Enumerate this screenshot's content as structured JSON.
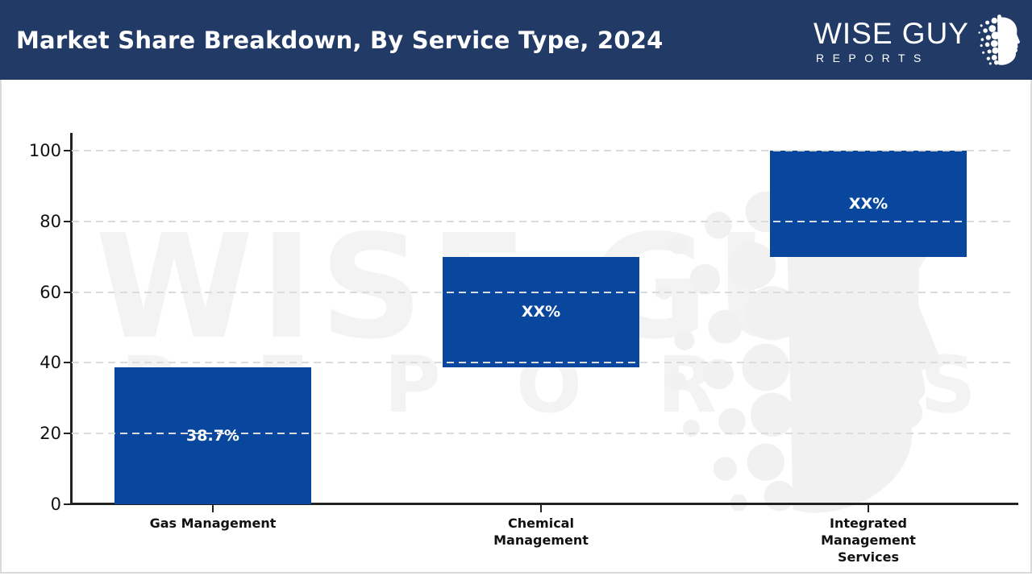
{
  "header": {
    "title": "Market Share Breakdown, By Service Type, 2024",
    "logo": {
      "brand": "WISE GUY",
      "tagline": "REPORTS"
    }
  },
  "watermark": {
    "line1": "WISE GUY",
    "line2": "R E P O R T S"
  },
  "chart_data": {
    "type": "bar",
    "subtype": "waterfall",
    "title": "Market Share Breakdown, By Service Type, 2024",
    "categories": [
      "Gas Management",
      "Chemical Management",
      "Integrated Management Services"
    ],
    "bars": [
      {
        "category": "Gas Management",
        "label_lines": [
          "Gas Management"
        ],
        "start": 0,
        "end": 38.7,
        "value_label": "38.7%"
      },
      {
        "category": "Chemical Management",
        "label_lines": [
          "Chemical",
          "Management"
        ],
        "start": 38.7,
        "end": 70,
        "value_label": "XX%"
      },
      {
        "category": "Integrated Management Services",
        "label_lines": [
          "Integrated",
          "Management",
          "Services"
        ],
        "start": 70,
        "end": 100,
        "value_label": "XX%"
      }
    ],
    "xlabel": "",
    "ylabel": "",
    "ylim": [
      0,
      100
    ],
    "yticks": [
      0,
      20,
      40,
      60,
      80,
      100
    ],
    "grid": "horizontal-dashed",
    "legend": "none",
    "bar_color": "#09479E"
  },
  "colors": {
    "header_bg": "#213A66",
    "bar": "#09479E",
    "grid_line": "#DCDCDC",
    "axis_line": "#222222",
    "tick_text": "#111111",
    "bar_label_text": "#FFFFFF",
    "watermark": "#F3F3F3",
    "frame_border": "#DADADA"
  }
}
